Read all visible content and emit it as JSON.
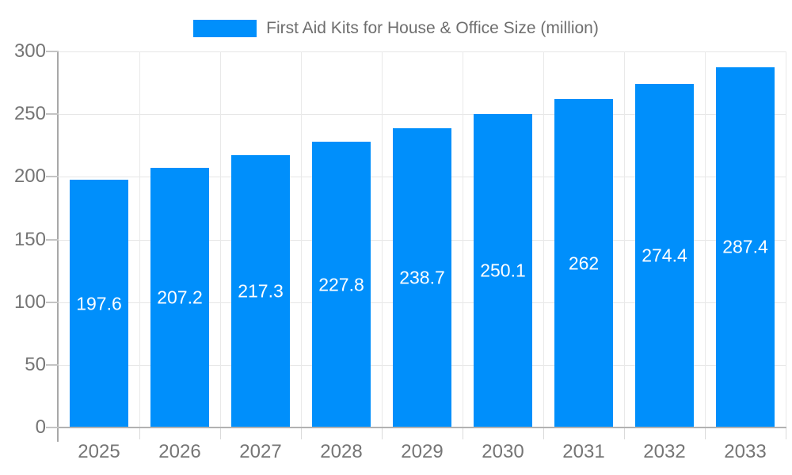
{
  "colors": {
    "bar": "#008ffb",
    "axis_text": "#757575",
    "title_text": "#6e6e6e",
    "bar_label_text": "#ffffff",
    "gridline": "#e6e6e6",
    "axis_line": "#b2b2b2"
  },
  "chart_data": {
    "type": "bar",
    "title": "First Aid Kits for House & Office Size (million)",
    "categories": [
      "2025",
      "2026",
      "2027",
      "2028",
      "2029",
      "2030",
      "2031",
      "2032",
      "2033"
    ],
    "values": [
      197.6,
      207.2,
      217.3,
      227.8,
      238.7,
      250.1,
      262,
      274.4,
      287.4
    ],
    "value_labels": [
      "197.6",
      "207.2",
      "217.3",
      "227.8",
      "238.7",
      "250.1",
      "262",
      "274.4",
      "287.4"
    ],
    "xlabel": "",
    "ylabel": "",
    "ylim": [
      0,
      300
    ],
    "yticks": [
      0,
      50,
      100,
      150,
      200,
      250,
      300
    ],
    "ytick_labels": [
      "0",
      "50",
      "100",
      "150",
      "200",
      "250",
      "300"
    ],
    "grid": true,
    "legend_position": "top",
    "bar_color": "#008ffb"
  }
}
